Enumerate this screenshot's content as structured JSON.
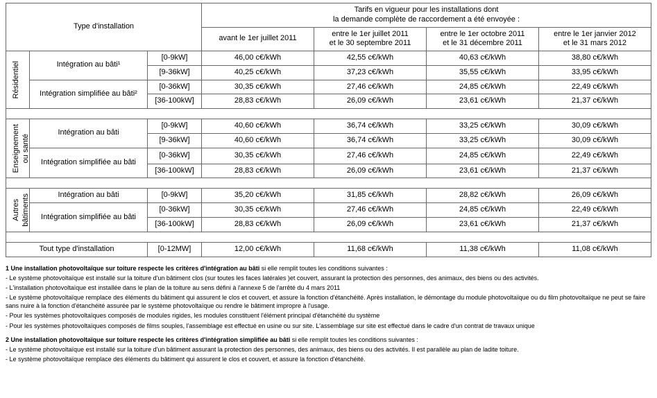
{
  "table": {
    "headers": {
      "type_installation": "Type d'installation",
      "tariff_title_line1": "Tarifs en vigueur pour les installations dont",
      "tariff_title_line2": "la demande complète de raccordement a été envoyée :",
      "periods": [
        "avant le 1er juillet 2011",
        "entre le 1er juillet 2011\net le 30 septembre 2011",
        "entre le 1er octobre 2011\net le 31 décembre 2011",
        "entre le 1er janvier 2012\net le 31 mars 2012"
      ]
    },
    "unit": "c€/kWh",
    "sections": [
      {
        "vlabel": "Résidentiel",
        "rows": [
          {
            "type": "Intégration au bâti¹",
            "range": "[0-9kW]",
            "vals": [
              "46,00",
              "42,55",
              "40,63",
              "38,80"
            ]
          },
          {
            "type": "",
            "range": "[9-36kW]",
            "vals": [
              "40,25",
              "37,23",
              "35,55",
              "33,95"
            ]
          },
          {
            "type": "Intégration simplifiée au bâti²",
            "range": "[0-36kW]",
            "vals": [
              "30,35",
              "27,46",
              "24,85",
              "22,49"
            ]
          },
          {
            "type": "",
            "range": "[36-100kW]",
            "vals": [
              "28,83",
              "26,09",
              "23,61",
              "21,37"
            ]
          }
        ]
      },
      {
        "vlabel": "Enseignement\nou santé",
        "rows": [
          {
            "type": "Intégration au bâti",
            "range": "[0-9kW]",
            "vals": [
              "40,60",
              "36,74",
              "33,25",
              "30,09"
            ]
          },
          {
            "type": "",
            "range": "[9-36kW]",
            "vals": [
              "40,60",
              "36,74",
              "33,25",
              "30,09"
            ]
          },
          {
            "type": "Intégration simplifiée au bâti",
            "range": "[0-36kW]",
            "vals": [
              "30,35",
              "27,46",
              "24,85",
              "22,49"
            ]
          },
          {
            "type": "",
            "range": "[36-100kW]",
            "vals": [
              "28,83",
              "26,09",
              "23,61",
              "21,37"
            ]
          }
        ]
      },
      {
        "vlabel": "Autres\nbâtiments",
        "rows": [
          {
            "type": "Intégration au bâti",
            "range": "[0-9kW]",
            "vals": [
              "35,20",
              "31,85",
              "28,82",
              "26,09"
            ]
          },
          {
            "type": "Intégration simplifiée au bâti",
            "range": "[0-36kW]",
            "vals": [
              "30,35",
              "27,46",
              "24,85",
              "22,49"
            ]
          },
          {
            "type": "",
            "range": "[36-100kW]",
            "vals": [
              "28,83",
              "26,09",
              "23,61",
              "21,37"
            ]
          }
        ]
      },
      {
        "vlabel": "",
        "rows": [
          {
            "type": "Tout type d'installation",
            "range": "[0-12MW]",
            "vals": [
              "12,00",
              "11,68",
              "11,38",
              "11,08"
            ]
          }
        ]
      }
    ]
  },
  "notes": {
    "n1_lead": "1 Une installation photovoltaïque sur toiture respecte les critères d'intégration au bâti",
    "n1_lead_tail": " si elle remplit toutes les conditions suivantes :",
    "n1_lines": [
      "- Le système photovoltaïque est installé sur la toiture d'un bâtiment clos (sur toutes les faces latérales )et couvert, assurant la protection des personnes, des animaux, des biens ou des activités.",
      "- L'installation photovoltaïque est installée dans le plan de la toiture au sens défini à l'annexe 5 de l'arrêté du 4 mars 2011",
      "- Le système photovoltaïque remplace des éléments du bâtiment qui assurent le clos et couvert, et assure la fonction d'étanchéité. Après installation, le démontage du module photovoltaïque ou du film photovoltaïque ne peut se faire sans nuire à la fonction d'étanchéité assurée par le système photovoltaïque ou rendre le bâtiment impropre à l'usage.",
      "- Pour les systèmes photovoltaïques composés de modules rigides, les modules constituent l'élément principal d'étanchéité du système",
      "- Pour les systèmes photovoltaïques composés de films souples, l'assemblage est effectué en usine ou sur site. L'assemblage sur site est effectué dans le cadre d'un contrat de travaux unique"
    ],
    "n2_lead": "2 Une installation photovoltaïque sur toiture respecte les critères d'intégration simplifiée au bâti",
    "n2_lead_tail": " si elle remplit toutes les conditions suivantes :",
    "n2_lines": [
      "- Le système photovoltaïque est installé sur la toiture d'un bâtiment assurant la protection des personnes, des animaux, des biens ou des activités. Il est parallèle au plan de ladite toiture.",
      "- Le système photovoltaïque remplace des éléments du bâtiment qui assurent le clos et couvert, et assure la fonction d'étanchéité."
    ]
  }
}
